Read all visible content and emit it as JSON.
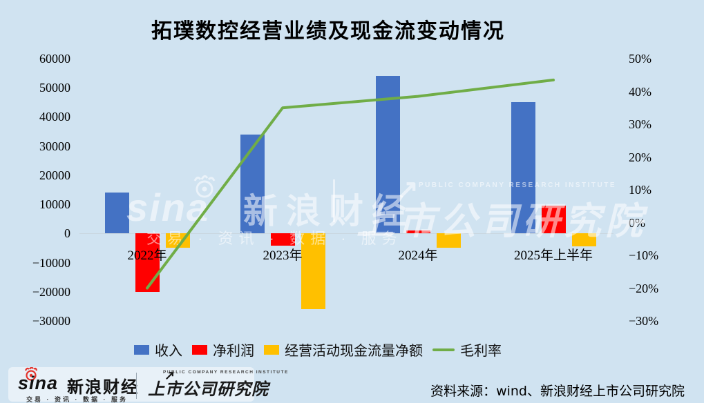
{
  "title": "拓璞数控经营业绩及现金流变动情况",
  "chart_data": {
    "type": "bar",
    "subtype": "combo-bar-line-dual-axis",
    "categories": [
      "2022年",
      "2023年",
      "2024年",
      "2025年上半年"
    ],
    "series": [
      {
        "name": "收入",
        "type": "bar",
        "axis": "left",
        "color": "#4472c4",
        "values": [
          14000,
          34000,
          54000,
          45000
        ]
      },
      {
        "name": "净利润",
        "type": "bar",
        "axis": "left",
        "color": "#ff0000",
        "values": [
          -20000,
          -4300,
          1000,
          9500
        ]
      },
      {
        "name": "经营活动现金流量净额",
        "type": "bar",
        "axis": "left",
        "color": "#ffc000",
        "values": [
          -5000,
          -26000,
          -5000,
          -4500
        ]
      },
      {
        "name": "毛利率",
        "type": "line",
        "axis": "right",
        "color": "#70ad47",
        "values": [
          -20,
          35,
          38.5,
          43.5
        ]
      }
    ],
    "left_axis": {
      "min": -30000,
      "max": 60000,
      "step": 10000,
      "ticks": [
        {
          "label": "60000",
          "value": 60000
        },
        {
          "label": "50000",
          "value": 50000
        },
        {
          "label": "40000",
          "value": 40000
        },
        {
          "label": "30000",
          "value": 30000
        },
        {
          "label": "20000",
          "value": 20000
        },
        {
          "label": "10000",
          "value": 10000
        },
        {
          "label": "0",
          "value": 0
        },
        {
          "label": "−10000",
          "value": -10000
        },
        {
          "label": "−20000",
          "value": -20000
        },
        {
          "label": "−30000",
          "value": -30000
        }
      ]
    },
    "right_axis": {
      "min": -30,
      "max": 50,
      "step": 10,
      "ticks": [
        {
          "label": "50%",
          "value": 50
        },
        {
          "label": "40%",
          "value": 40
        },
        {
          "label": "30%",
          "value": 30
        },
        {
          "label": "20%",
          "value": 20
        },
        {
          "label": "10%",
          "value": 10
        },
        {
          "label": "0%",
          "value": 0
        },
        {
          "label": "−10%",
          "value": -10
        },
        {
          "label": "−20%",
          "value": -20
        },
        {
          "label": "−30%",
          "value": -30
        }
      ]
    },
    "legend_position": "bottom",
    "grid": false,
    "zero_line": true
  },
  "watermark": {
    "sina": "sina",
    "brand": "新浪财经",
    "tagline": "交易 · 资讯 · 数据 · 服务",
    "institute_en": "PUBLIC COMPANY RESEARCH INSTITUTE",
    "institute": "上市公司研究院",
    "arrow": "↗"
  },
  "footer": {
    "sina_logo": "sina",
    "sina_brand": "新浪财经",
    "sina_tagline": "交易 · 资讯 · 数据 · 服务",
    "institute_en": "PUBLIC COMPANY RESEARCH INSTITUTE",
    "institute": "上市公司研究院",
    "institute_arrow": "↗",
    "source": "资料来源：wind、新浪财经上市公司研究院"
  },
  "colors": {
    "background": "#d0e3f1",
    "bar_revenue": "#4472c4",
    "bar_net_profit": "#ff0000",
    "bar_cash_flow": "#ffc000",
    "line_gross_margin": "#70ad47",
    "zero_line": "#c9d6e0",
    "sina_red": "#e4322b"
  }
}
